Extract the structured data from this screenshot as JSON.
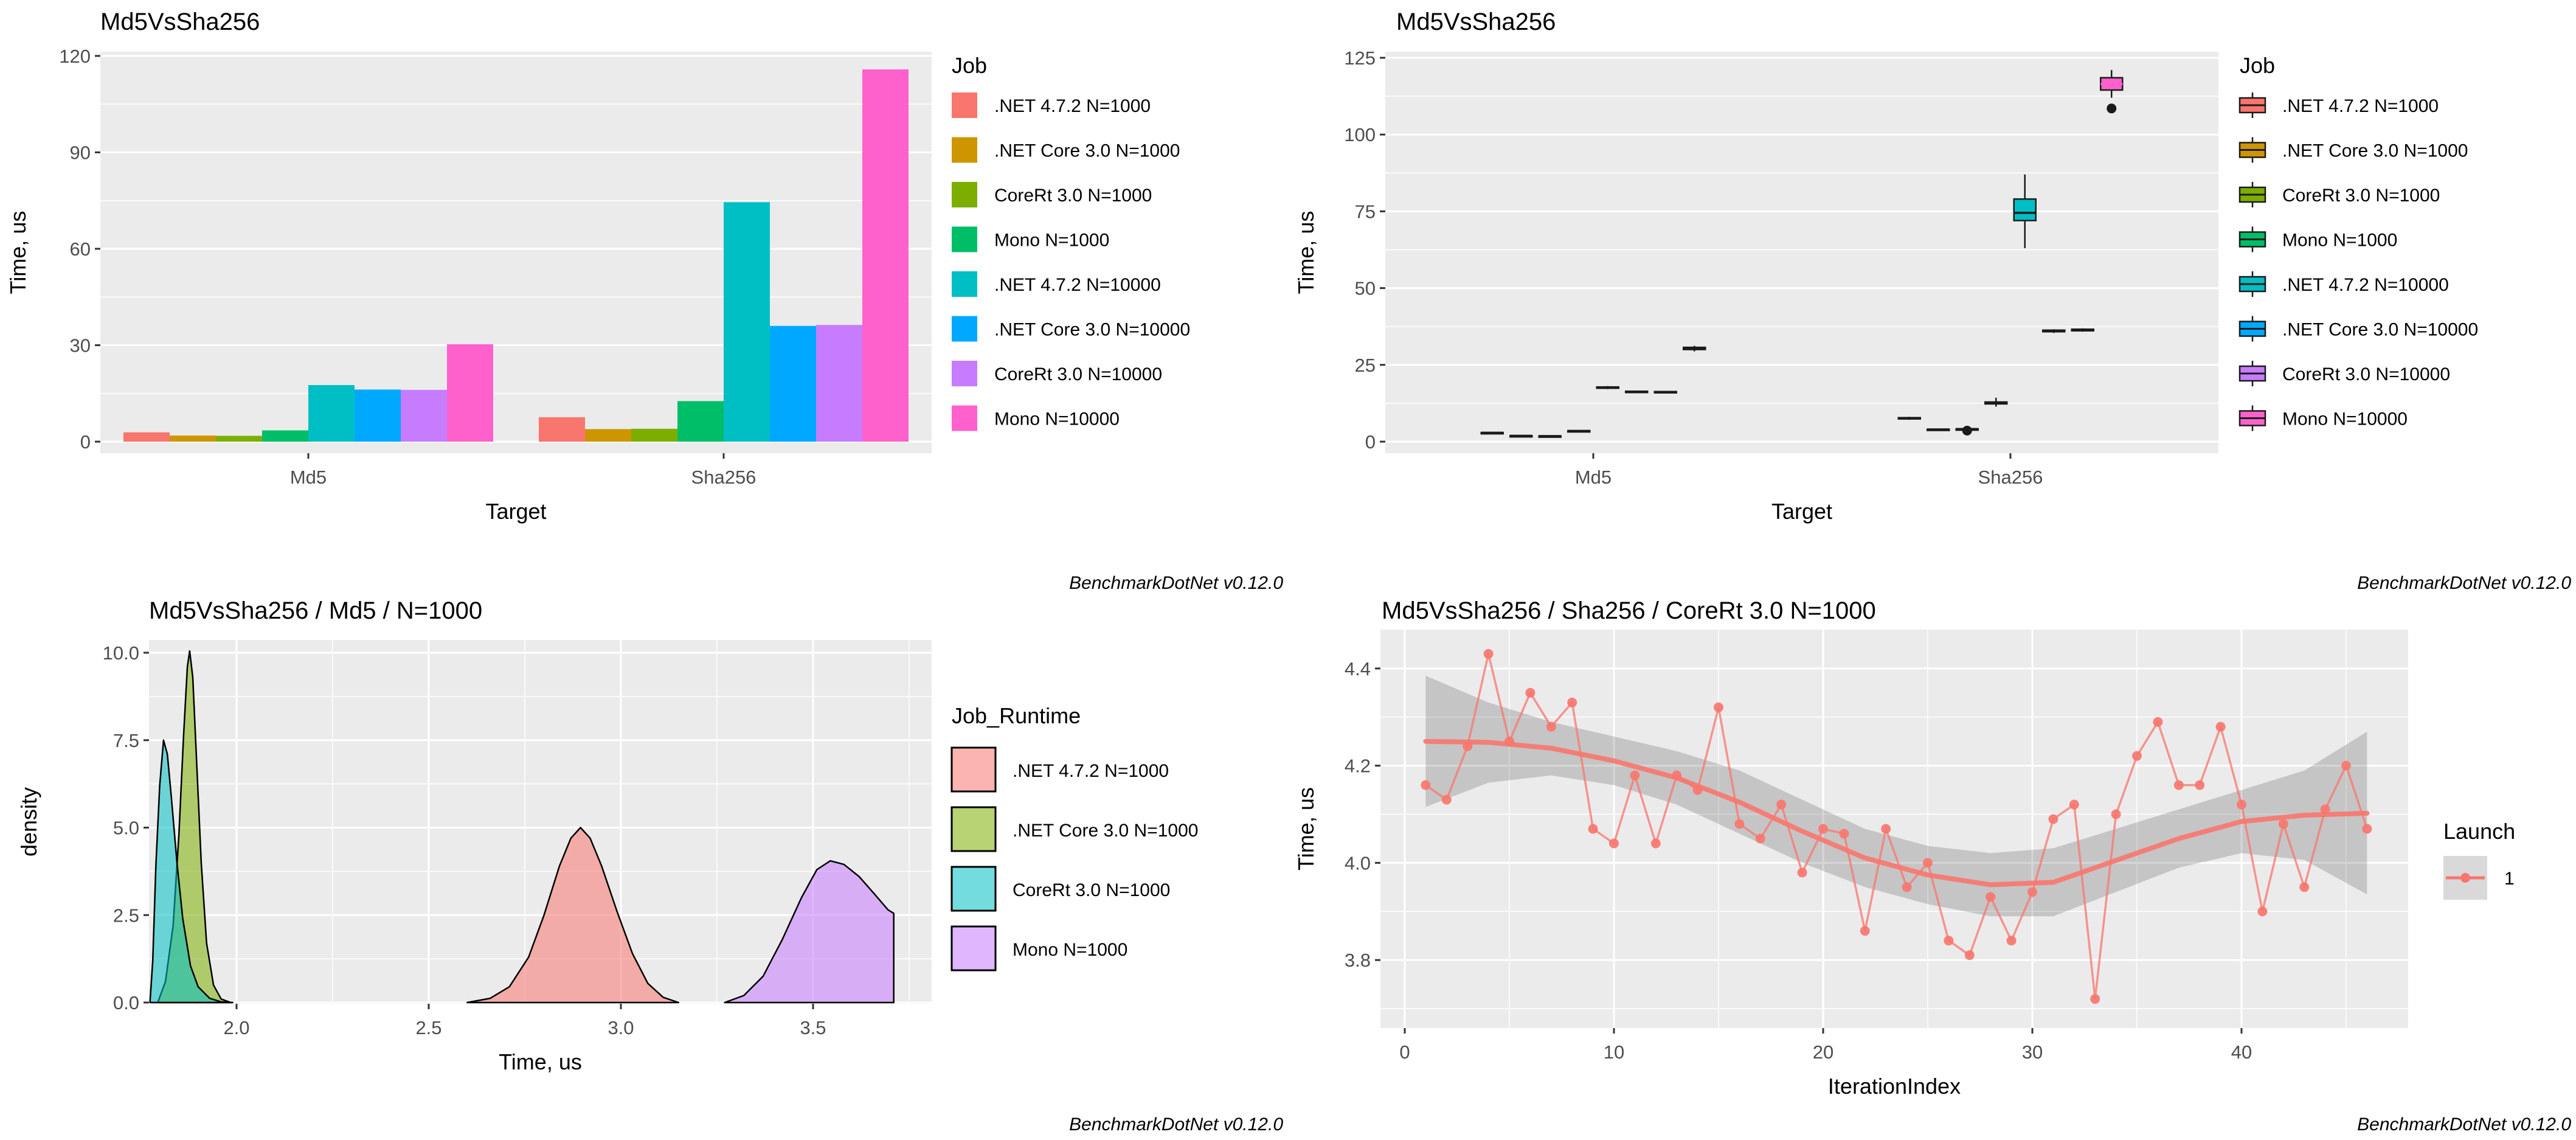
{
  "footer": {
    "text": "BenchmarkDotNet v0.12.0"
  },
  "style": {
    "panel_bg": "#EBEBEB",
    "grid_color": "#FFFFFF",
    "tick_text_color": "#4D4D4D",
    "axis_title_color": "#000000",
    "tick_mark_color": "#333333",
    "box_stroke": "#1A1A1A",
    "outlier_color": "#1A1A1A",
    "band_fill": "rgba(0,0,0,0.16)",
    "legend_key_bg": "#D9D9D9",
    "scatter_color": "#F8766D"
  },
  "chart_data": [
    {
      "type": "bar",
      "title": "Md5VsSha256",
      "xlabel": "Target",
      "ylabel": "Time, us",
      "legend_title": "Job",
      "legend_position": "right",
      "grid": true,
      "categories": [
        "Md5",
        "Sha256"
      ],
      "yticks": {
        "values": [
          0,
          30,
          60,
          90,
          120
        ],
        "labels": [
          "0",
          "30",
          "60",
          "90",
          "120"
        ],
        "minor": [
          15,
          45,
          75,
          105
        ]
      },
      "ylim": [
        -3.6,
        121.3
      ],
      "series": [
        {
          "name": ".NET 4.7.2 N=1000",
          "color": "#F8766D",
          "values": [
            2.9,
            7.6
          ]
        },
        {
          "name": ".NET Core 3.0 N=1000",
          "color": "#CD9600",
          "values": [
            1.9,
            3.9
          ]
        },
        {
          "name": "CoreRt 3.0 N=1000",
          "color": "#7CAE00",
          "values": [
            1.8,
            4.0
          ]
        },
        {
          "name": "Mono N=1000",
          "color": "#00BE67",
          "values": [
            3.5,
            12.6
          ]
        },
        {
          "name": ".NET 4.7.2 N=10000",
          "color": "#00BFC4",
          "values": [
            17.6,
            74.5
          ]
        },
        {
          "name": ".NET Core 3.0 N=10000",
          "color": "#00A9FF",
          "values": [
            16.2,
            36.0
          ]
        },
        {
          "name": "CoreRt 3.0 N=10000",
          "color": "#C77CFF",
          "values": [
            16.1,
            36.3
          ]
        },
        {
          "name": "Mono N=10000",
          "color": "#FF61CC",
          "values": [
            30.3,
            115.8
          ]
        }
      ]
    },
    {
      "type": "boxplot",
      "title": "Md5VsSha256",
      "xlabel": "Target",
      "ylabel": "Time, us",
      "legend_title": "Job",
      "legend_position": "right",
      "grid": true,
      "categories": [
        "Md5",
        "Sha256"
      ],
      "yticks": {
        "values": [
          0,
          25,
          50,
          75,
          100,
          125
        ],
        "labels": [
          "0",
          "25",
          "50",
          "75",
          "100",
          "125"
        ],
        "minor": [
          12.5,
          37.5,
          62.5,
          87.5,
          112.5
        ]
      },
      "ylim": [
        -3.8,
        126.9
      ],
      "series": [
        {
          "name": ".NET 4.7.2 N=1000",
          "color": "#F8766D",
          "boxes": [
            {
              "cat": "Md5",
              "lo": 2.8,
              "q1": 2.85,
              "med": 2.9,
              "q3": 2.95,
              "hi": 3.0,
              "outliers": []
            },
            {
              "cat": "Sha256",
              "lo": 7.1,
              "q1": 7.4,
              "med": 7.6,
              "q3": 7.8,
              "hi": 8.1,
              "outliers": []
            }
          ]
        },
        {
          "name": ".NET Core 3.0 N=1000",
          "color": "#CD9600",
          "boxes": [
            {
              "cat": "Md5",
              "lo": 1.8,
              "q1": 1.85,
              "med": 1.9,
              "q3": 1.95,
              "hi": 2.0,
              "outliers": []
            },
            {
              "cat": "Sha256",
              "lo": 3.7,
              "q1": 3.85,
              "med": 3.95,
              "q3": 4.05,
              "hi": 4.15,
              "outliers": []
            }
          ]
        },
        {
          "name": "CoreRt 3.0 N=1000",
          "color": "#7CAE00",
          "boxes": [
            {
              "cat": "Md5",
              "lo": 1.72,
              "q1": 1.77,
              "med": 1.81,
              "q3": 1.86,
              "hi": 1.9,
              "outliers": []
            },
            {
              "cat": "Sha256",
              "lo": 3.95,
              "q1": 4.05,
              "med": 4.1,
              "q3": 4.15,
              "hi": 4.25,
              "outliers": [
                3.6
              ]
            }
          ]
        },
        {
          "name": "Mono N=1000",
          "color": "#00BE67",
          "boxes": [
            {
              "cat": "Md5",
              "lo": 3.4,
              "q1": 3.45,
              "med": 3.5,
              "q3": 3.56,
              "hi": 3.62,
              "outliers": []
            },
            {
              "cat": "Sha256",
              "lo": 11.4,
              "q1": 12.3,
              "med": 12.6,
              "q3": 12.9,
              "hi": 14.3,
              "outliers": []
            }
          ]
        },
        {
          "name": ".NET 4.7.2 N=10000",
          "color": "#00BFC4",
          "boxes": [
            {
              "cat": "Md5",
              "lo": 17.1,
              "q1": 17.4,
              "med": 17.6,
              "q3": 17.8,
              "hi": 18.1,
              "outliers": []
            },
            {
              "cat": "Sha256",
              "lo": 63.0,
              "q1": 72.0,
              "med": 74.5,
              "q3": 79.0,
              "hi": 87.0,
              "outliers": []
            }
          ]
        },
        {
          "name": ".NET Core 3.0 N=10000",
          "color": "#00A9FF",
          "boxes": [
            {
              "cat": "Md5",
              "lo": 15.8,
              "q1": 16.0,
              "med": 16.2,
              "q3": 16.4,
              "hi": 16.6,
              "outliers": []
            },
            {
              "cat": "Sha256",
              "lo": 35.4,
              "q1": 35.8,
              "med": 36.0,
              "q3": 36.3,
              "hi": 36.6,
              "outliers": []
            }
          ]
        },
        {
          "name": "CoreRt 3.0 N=10000",
          "color": "#C77CFF",
          "boxes": [
            {
              "cat": "Md5",
              "lo": 15.7,
              "q1": 15.9,
              "med": 16.1,
              "q3": 16.3,
              "hi": 16.5,
              "outliers": []
            },
            {
              "cat": "Sha256",
              "lo": 35.8,
              "q1": 36.1,
              "med": 36.35,
              "q3": 36.6,
              "hi": 36.9,
              "outliers": []
            }
          ]
        },
        {
          "name": "Mono N=10000",
          "color": "#FF61CC",
          "median_color": "#FF61CC",
          "boxes": [
            {
              "cat": "Md5",
              "lo": 29.4,
              "q1": 30.0,
              "med": 30.3,
              "q3": 30.7,
              "hi": 31.2,
              "outliers": []
            },
            {
              "cat": "Sha256",
              "lo": 112.0,
              "q1": 114.5,
              "med": 116.5,
              "q3": 118.5,
              "hi": 121.0,
              "outliers": [
                108.5
              ]
            }
          ]
        }
      ]
    },
    {
      "type": "area",
      "subtype": "density",
      "title": "Md5VsSha256 / Md5 / N=1000",
      "xlabel": "Time, us",
      "ylabel": "density",
      "legend_title": "Job_Runtime",
      "legend_position": "right",
      "grid": true,
      "xlim": [
        1.772,
        3.808
      ],
      "ylim": [
        0,
        10.4
      ],
      "yticks": {
        "values": [
          0,
          2.5,
          5,
          7.5,
          10
        ],
        "labels": [
          "0.0",
          "2.5",
          "5.0",
          "7.5",
          "10.0"
        ],
        "minor": [
          1.25,
          3.75,
          6.25,
          8.75
        ]
      },
      "xticks": {
        "values": [
          2.0,
          2.5,
          3.0,
          3.5
        ],
        "labels": [
          "2.0",
          "2.5",
          "3.0",
          "3.5"
        ],
        "minor": [
          2.25,
          2.75,
          3.25,
          3.75
        ]
      },
      "series": [
        {
          "name": ".NET 4.7.2 N=1000",
          "color": "#F8766D",
          "fill": "rgba(248,118,109,0.55)",
          "points": [
            [
              2.6,
              0
            ],
            [
              2.66,
              0.12
            ],
            [
              2.71,
              0.45
            ],
            [
              2.76,
              1.3
            ],
            [
              2.8,
              2.5
            ],
            [
              2.84,
              3.9
            ],
            [
              2.87,
              4.7
            ],
            [
              2.895,
              5.0
            ],
            [
              2.92,
              4.7
            ],
            [
              2.95,
              3.9
            ],
            [
              2.99,
              2.6
            ],
            [
              3.03,
              1.4
            ],
            [
              3.07,
              0.55
            ],
            [
              3.11,
              0.15
            ],
            [
              3.15,
              0
            ]
          ]
        },
        {
          "name": ".NET Core 3.0 N=1000",
          "color": "#7CAE00",
          "fill": "rgba(124,174,0,0.55)",
          "points": [
            [
              1.795,
              0
            ],
            [
              1.815,
              0.6
            ],
            [
              1.835,
              2.2
            ],
            [
              1.85,
              4.8
            ],
            [
              1.862,
              7.6
            ],
            [
              1.872,
              9.6
            ],
            [
              1.878,
              10.05
            ],
            [
              1.886,
              9.3
            ],
            [
              1.896,
              6.9
            ],
            [
              1.908,
              4.0
            ],
            [
              1.922,
              1.7
            ],
            [
              1.94,
              0.5
            ],
            [
              1.96,
              0.1
            ],
            [
              1.985,
              0
            ]
          ]
        },
        {
          "name": "CoreRt 3.0 N=1000",
          "color": "#00BFC4",
          "fill": "rgba(0,191,196,0.55)",
          "points": [
            [
              1.775,
              0.05
            ],
            [
              1.782,
              1.2
            ],
            [
              1.79,
              3.9
            ],
            [
              1.8,
              6.2
            ],
            [
              1.81,
              7.5
            ],
            [
              1.82,
              7.1
            ],
            [
              1.83,
              5.9
            ],
            [
              1.845,
              4.0
            ],
            [
              1.86,
              2.4
            ],
            [
              1.88,
              1.05
            ],
            [
              1.9,
              0.45
            ],
            [
              1.93,
              0.12
            ],
            [
              1.96,
              0.02
            ],
            [
              1.99,
              0
            ]
          ]
        },
        {
          "name": "Mono N=1000",
          "color": "#C77CFF",
          "fill": "rgba(199,124,255,0.55)",
          "points": [
            [
              3.27,
              0
            ],
            [
              3.32,
              0.2
            ],
            [
              3.37,
              0.75
            ],
            [
              3.42,
              1.8
            ],
            [
              3.47,
              3.0
            ],
            [
              3.51,
              3.8
            ],
            [
              3.545,
              4.05
            ],
            [
              3.58,
              3.95
            ],
            [
              3.62,
              3.6
            ],
            [
              3.66,
              3.1
            ],
            [
              3.695,
              2.65
            ],
            [
              3.71,
              2.55
            ]
          ],
          "truncated_right": true
        }
      ]
    },
    {
      "type": "line",
      "subtype": "scatter-smooth",
      "title": "Md5VsSha256 / Sha256 / CoreRt 3.0 N=1000",
      "xlabel": "IterationIndex",
      "ylabel": "Time, us",
      "legend_title": "Launch",
      "legend_items": [
        "1"
      ],
      "legend_position": "right",
      "grid": true,
      "xlim": [
        -1.2,
        48.0
      ],
      "ylim": [
        3.66,
        4.48
      ],
      "yticks": {
        "values": [
          3.8,
          4.0,
          4.2,
          4.4
        ],
        "labels": [
          "3.8",
          "4.0",
          "4.2",
          "4.4"
        ],
        "minor": [
          3.7,
          3.9,
          4.1,
          4.3
        ]
      },
      "xticks": {
        "values": [
          0,
          10,
          20,
          30,
          40
        ],
        "labels": [
          "0",
          "10",
          "20",
          "30",
          "40"
        ],
        "minor": [
          5,
          15,
          25,
          35,
          45
        ]
      },
      "x": [
        1,
        2,
        3,
        4,
        5,
        6,
        7,
        8,
        9,
        10,
        11,
        12,
        13,
        14,
        15,
        16,
        17,
        18,
        19,
        20,
        21,
        22,
        23,
        24,
        25,
        26,
        27,
        28,
        29,
        30,
        31,
        32,
        33,
        34,
        35,
        36,
        37,
        38,
        39,
        40,
        41,
        42,
        43,
        44,
        45,
        46
      ],
      "y": [
        4.16,
        4.13,
        4.24,
        4.43,
        4.25,
        4.35,
        4.28,
        4.33,
        4.07,
        4.04,
        4.18,
        4.04,
        4.18,
        4.15,
        4.32,
        4.08,
        4.05,
        4.12,
        3.98,
        4.07,
        4.06,
        3.86,
        4.07,
        3.95,
        4.0,
        3.84,
        3.81,
        3.93,
        3.84,
        3.94,
        4.09,
        4.12,
        3.72,
        4.1,
        4.22,
        4.29,
        4.16,
        4.16,
        4.28,
        4.12,
        3.9,
        4.08,
        3.95,
        4.11,
        4.2,
        4.07
      ],
      "smooth": [
        [
          1,
          4.25
        ],
        [
          4,
          4.248
        ],
        [
          7,
          4.236
        ],
        [
          10,
          4.21
        ],
        [
          13,
          4.175
        ],
        [
          16,
          4.125
        ],
        [
          19,
          4.065
        ],
        [
          22,
          4.01
        ],
        [
          25,
          3.975
        ],
        [
          28,
          3.955
        ],
        [
          31,
          3.96
        ],
        [
          34,
          4.005
        ],
        [
          37,
          4.05
        ],
        [
          40,
          4.085
        ],
        [
          43,
          4.098
        ],
        [
          46,
          4.102
        ]
      ],
      "band_upper": [
        [
          1,
          4.385
        ],
        [
          4,
          4.33
        ],
        [
          7,
          4.29
        ],
        [
          10,
          4.26
        ],
        [
          13,
          4.23
        ],
        [
          16,
          4.19
        ],
        [
          19,
          4.13
        ],
        [
          22,
          4.07
        ],
        [
          25,
          4.035
        ],
        [
          28,
          4.02
        ],
        [
          31,
          4.03
        ],
        [
          34,
          4.07
        ],
        [
          37,
          4.11
        ],
        [
          40,
          4.15
        ],
        [
          43,
          4.19
        ],
        [
          46,
          4.27
        ]
      ],
      "band_lower": [
        [
          1,
          4.115
        ],
        [
          4,
          4.165
        ],
        [
          7,
          4.18
        ],
        [
          10,
          4.16
        ],
        [
          13,
          4.12
        ],
        [
          16,
          4.06
        ],
        [
          19,
          4.0
        ],
        [
          22,
          3.95
        ],
        [
          25,
          3.915
        ],
        [
          28,
          3.89
        ],
        [
          31,
          3.89
        ],
        [
          34,
          3.94
        ],
        [
          37,
          3.99
        ],
        [
          40,
          4.02
        ],
        [
          43,
          4.006
        ],
        [
          46,
          3.935
        ]
      ]
    }
  ]
}
